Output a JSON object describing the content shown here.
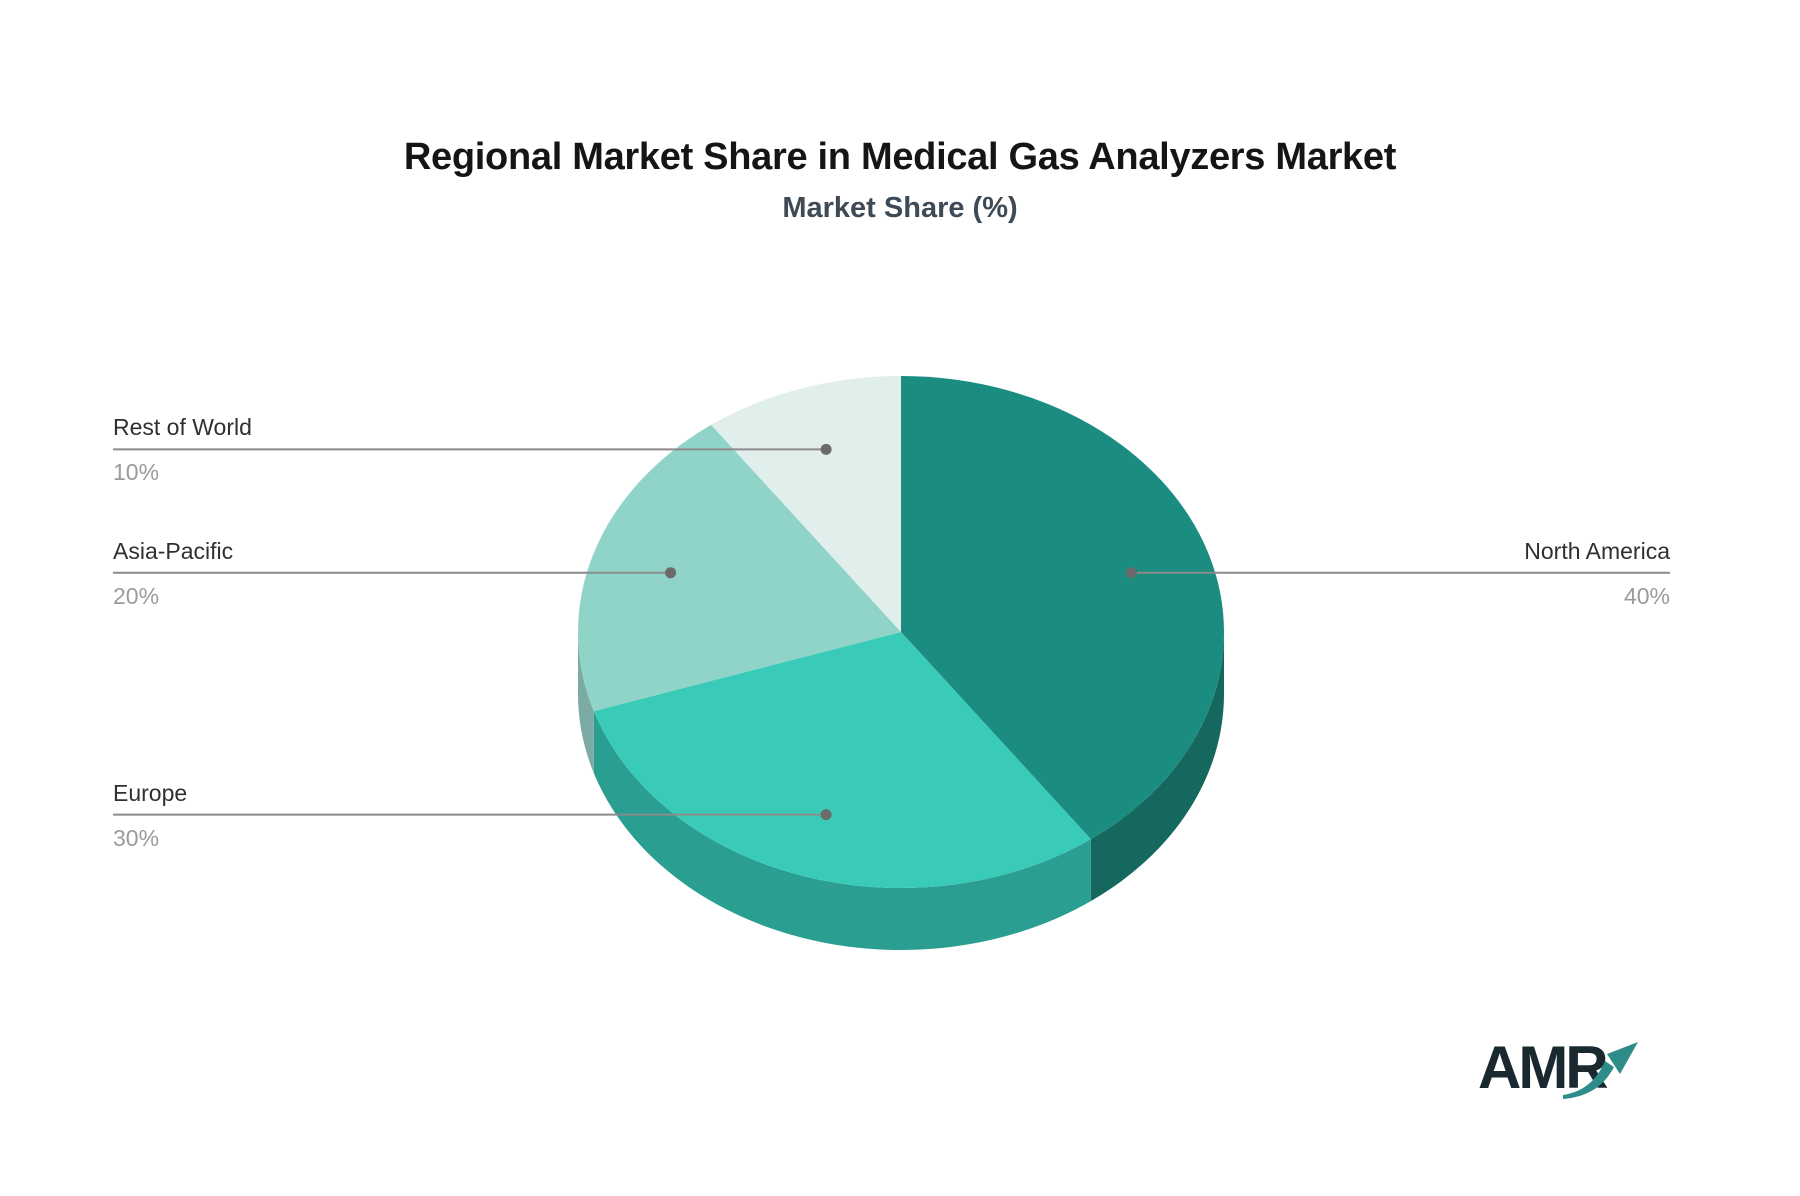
{
  "header": {
    "title": "Regional Market Share in Medical Gas Analyzers Market",
    "subtitle": "Market Share (%)"
  },
  "chart_data": {
    "type": "pie",
    "style": "3d-pie",
    "title": "Regional Market Share in Medical Gas Analyzers Market",
    "subtitle": "Market Share (%)",
    "unit": "%",
    "direction": "clockwise",
    "start_angle_deg": 0,
    "legend_position": "callout-labels",
    "categories": [
      "North America",
      "Europe",
      "Asia-Pacific",
      "Rest of World"
    ],
    "values": [
      40,
      30,
      20,
      10
    ],
    "slices": [
      {
        "name": "North America",
        "value": 40,
        "pct_label": "40%",
        "side": "right",
        "color": "#1a8c80",
        "wall_color": "#15685e"
      },
      {
        "name": "Europe",
        "value": 30,
        "pct_label": "30%",
        "side": "left",
        "color": "#3acbb8",
        "wall_color": "#2a9e90"
      },
      {
        "name": "Asia-Pacific",
        "value": 20,
        "pct_label": "20%",
        "side": "left",
        "color": "#90d3c8",
        "wall_color": "#7caaa4"
      },
      {
        "name": "Rest of World",
        "value": 10,
        "pct_label": "10%",
        "side": "left",
        "color": "#e0eeec",
        "wall_color": "#c9ddd9"
      }
    ],
    "callout_line_color": "#8b8b8b",
    "callout_dot_color": "#6b6b6b",
    "label_color": "#303030",
    "pct_color": "#9b9b9b"
  },
  "logo": {
    "text": "AMR",
    "text_color": "#1a2930",
    "arrow_color": "#2e8d89"
  }
}
